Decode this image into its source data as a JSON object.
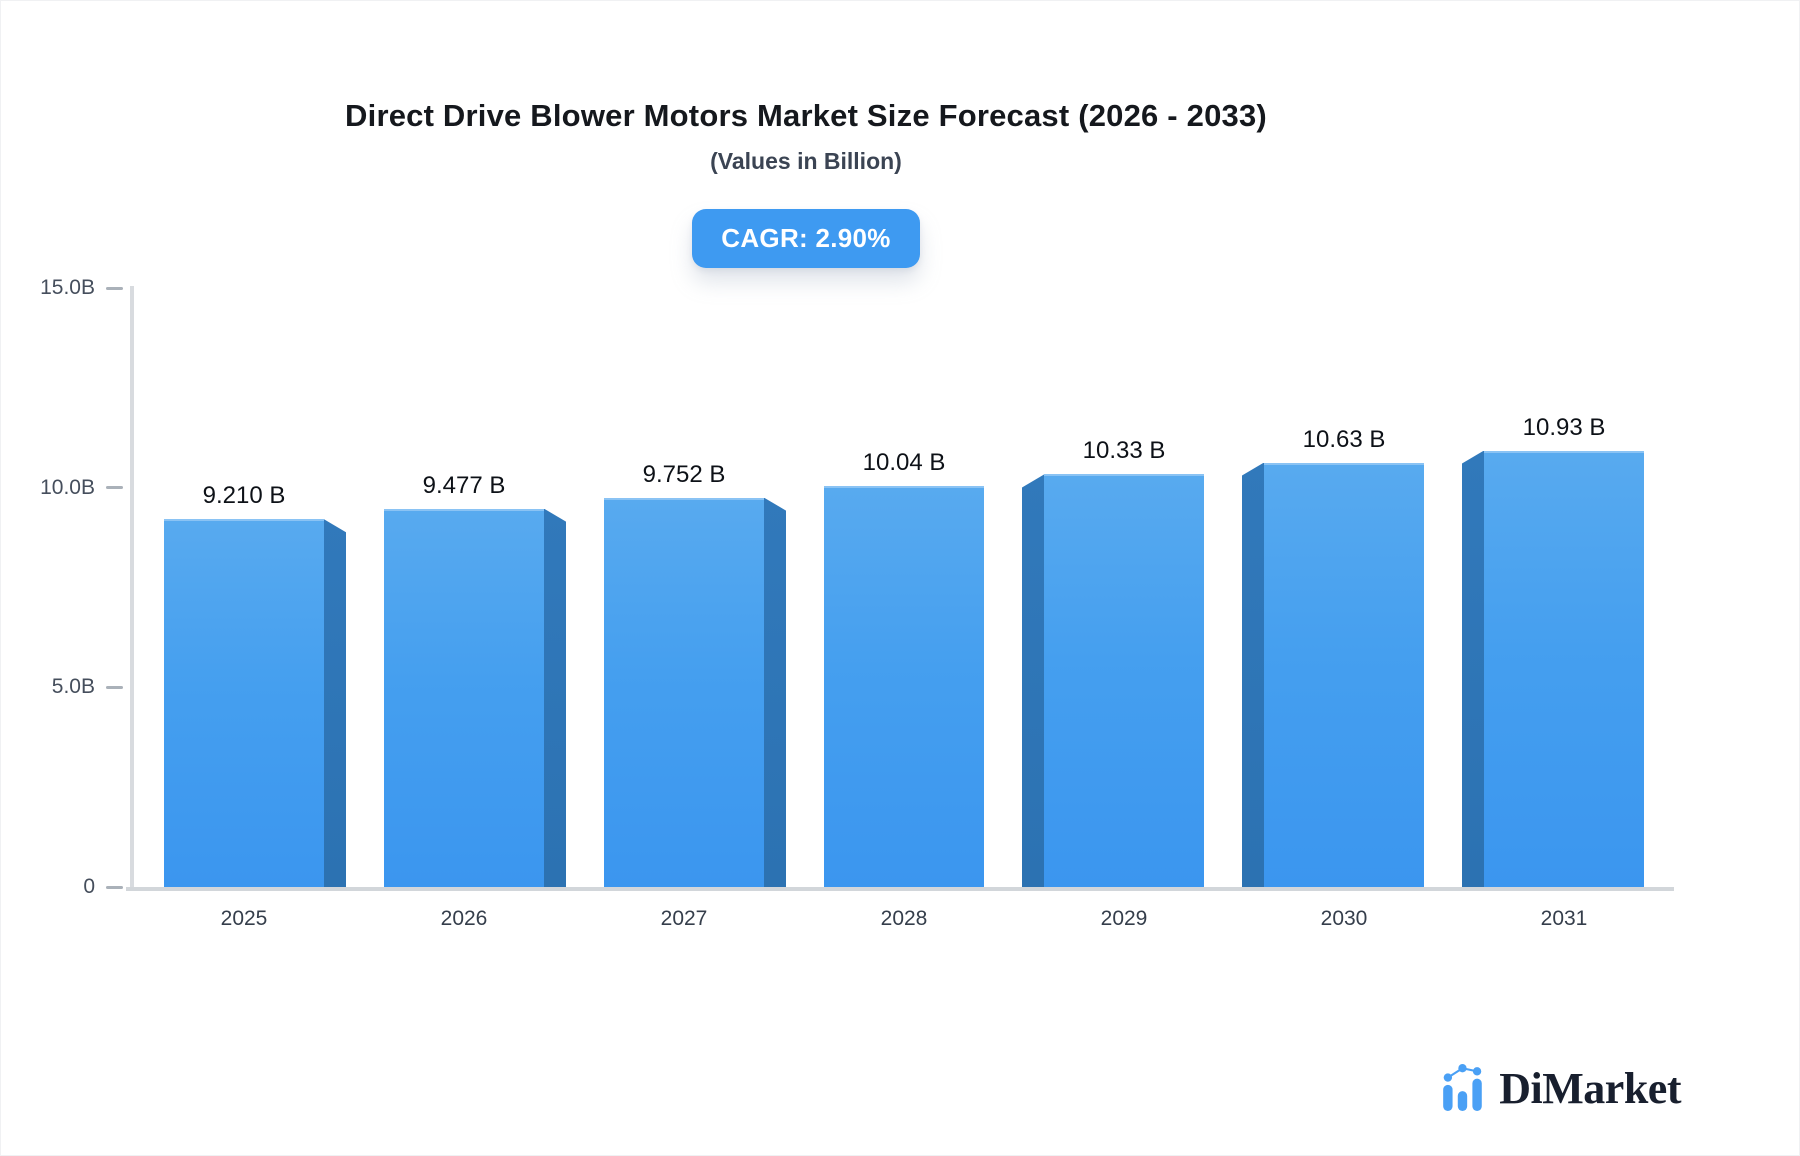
{
  "header": {
    "title": "Direct Drive Blower Motors Market Size Forecast (2026 - 2033)",
    "subtitle": "(Values in Billion)",
    "cagr_label": "CAGR: 2.90%"
  },
  "chart_data": {
    "type": "bar",
    "categories": [
      "2025",
      "2026",
      "2027",
      "2028",
      "2029",
      "2030",
      "2031"
    ],
    "values": [
      9.21,
      9.477,
      9.752,
      10.04,
      10.33,
      10.63,
      10.93
    ],
    "value_labels": [
      "9.210 B",
      "9.477 B",
      "9.752 B",
      "10.04 B",
      "10.33 B",
      "10.63 B",
      "10.93 B"
    ],
    "title": "Direct Drive Blower Motors Market Size Forecast (2026 - 2033)",
    "subtitle": "(Values in Billion)",
    "xlabel": "",
    "ylabel": "",
    "ylim": [
      0,
      15
    ],
    "yticks": [
      0,
      5,
      10,
      15
    ],
    "ytick_labels": [
      "0",
      "5.0B",
      "10.0B",
      "15.0B"
    ],
    "grid": false,
    "legend": "none",
    "bar_style": "3d-beveled",
    "colors": {
      "bar_face_top": "#58aaef",
      "bar_face_bottom": "#3b96ef",
      "bar_side": "#2d76b7",
      "axis_line": "#d2d6da",
      "tick_text": "#454e5c",
      "value_text": "#0d1117"
    }
  },
  "badge": {
    "color": "#3e9af1"
  },
  "brand": {
    "name": "DiMarket",
    "icon": "bar-line-chart-icon",
    "icon_color": "#4aa0f5"
  }
}
